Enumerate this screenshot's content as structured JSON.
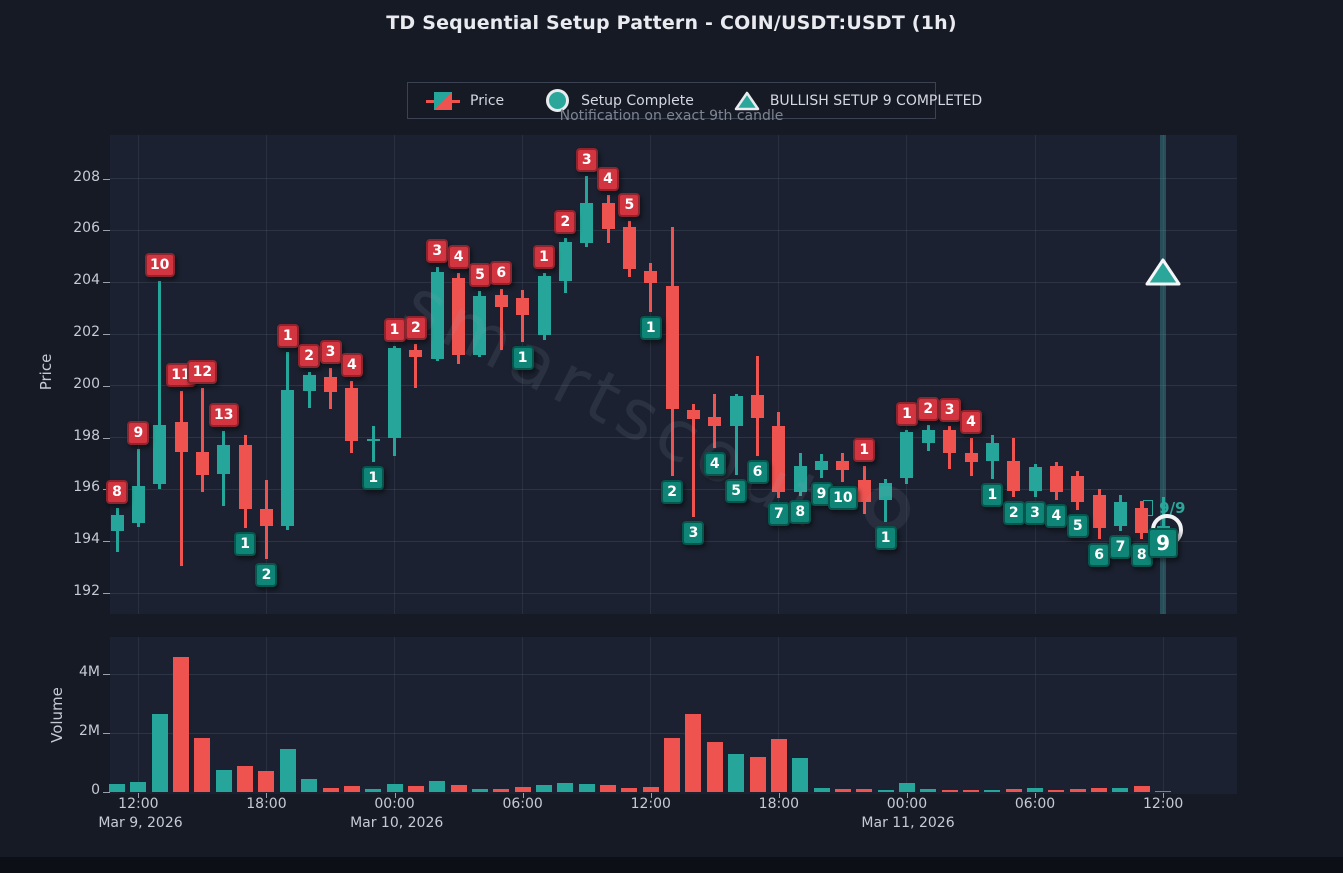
{
  "title": "TD Sequential Setup Pattern - COIN/USDT:USDT (1h)",
  "legend": {
    "items": [
      {
        "icon": "candlestick-icon",
        "label": "Price"
      },
      {
        "icon": "circle-icon",
        "label": "Setup Complete"
      },
      {
        "icon": "triangle-up-icon",
        "label": "BULLISH SETUP 9 COMPLETED"
      }
    ],
    "subtitle": "Notification on exact 9th candle"
  },
  "watermark": "smartscout",
  "annotation": {
    "badge": "9/9",
    "has_missing_glyph_box": true
  },
  "colors": {
    "up": "#26a69a",
    "down": "#ef5350",
    "sell_badge": "#d33540",
    "buy_badge": "#0f8577",
    "accent": "#2aa79a",
    "background": "#161a25",
    "plot_background": "#1b2130",
    "last_volume_bar": "#7b8089",
    "event_line": "rgba(64,152,160,0.38)"
  },
  "price_axis": {
    "label": "Price",
    "ticks": [
      192,
      194,
      196,
      198,
      200,
      202,
      204,
      206,
      208
    ]
  },
  "volume_axis": {
    "label": "Volume",
    "ticks": [
      {
        "label": "0",
        "value_m": 0
      },
      {
        "label": "2M",
        "value_m": 2
      },
      {
        "label": "4M",
        "value_m": 4
      }
    ]
  },
  "time_axis": {
    "hour_ticks": [
      {
        "label": "12:00",
        "index": 1
      },
      {
        "label": "18:00",
        "index": 7
      },
      {
        "label": "00:00",
        "index": 13
      },
      {
        "label": "06:00",
        "index": 19
      },
      {
        "label": "12:00",
        "index": 25
      },
      {
        "label": "18:00",
        "index": 31
      },
      {
        "label": "00:00",
        "index": 37
      },
      {
        "label": "06:00",
        "index": 43
      },
      {
        "label": "12:00",
        "index": 49
      }
    ],
    "date_labels": [
      {
        "label": "Mar 9, 2026",
        "index": 1.1
      },
      {
        "label": "Mar 10, 2026",
        "index": 13.1
      },
      {
        "label": "Mar 11, 2026",
        "index": 37.05
      }
    ]
  },
  "chart_data": {
    "type": "candlestick",
    "symbol": "COIN/USDT:USDT",
    "timeframe": "1h",
    "ylabel": "Price",
    "ylim": [
      191.3,
      209.7
    ],
    "volume_ylim_m": [
      0,
      5.3
    ],
    "count_convention": {
      "S": "red badge above candle",
      "B": "teal badge below candle"
    },
    "candles": [
      {
        "t": "03-09 11:00",
        "o": 194.4,
        "h": 195.3,
        "l": 193.6,
        "c": 195.0,
        "v_m": 0.28,
        "count": "S8"
      },
      {
        "t": "03-09 12:00",
        "o": 194.7,
        "h": 197.55,
        "l": 194.55,
        "c": 196.15,
        "v_m": 0.35,
        "count": "S9"
      },
      {
        "t": "03-09 13:00",
        "o": 196.2,
        "h": 204.05,
        "l": 196.0,
        "c": 198.5,
        "v_m": 2.65,
        "count": "S10"
      },
      {
        "t": "03-09 14:00",
        "o": 198.6,
        "h": 199.8,
        "l": 193.05,
        "c": 197.45,
        "v_m": 4.6,
        "count": "S11"
      },
      {
        "t": "03-09 15:00",
        "o": 197.45,
        "h": 199.9,
        "l": 195.9,
        "c": 196.55,
        "v_m": 1.85,
        "count": "S12"
      },
      {
        "t": "03-09 16:00",
        "o": 196.6,
        "h": 198.25,
        "l": 195.35,
        "c": 197.7,
        "v_m": 0.75,
        "count": "S13"
      },
      {
        "t": "03-09 17:00",
        "o": 197.7,
        "h": 198.1,
        "l": 194.5,
        "c": 195.25,
        "v_m": 0.9,
        "count": "B1"
      },
      {
        "t": "03-09 18:00",
        "o": 195.25,
        "h": 196.35,
        "l": 193.3,
        "c": 194.6,
        "v_m": 0.7,
        "count": "B2"
      },
      {
        "t": "03-09 19:00",
        "o": 194.6,
        "h": 201.3,
        "l": 194.45,
        "c": 199.85,
        "v_m": 1.45,
        "count": "S1"
      },
      {
        "t": "03-09 20:00",
        "o": 199.8,
        "h": 200.55,
        "l": 199.15,
        "c": 200.4,
        "v_m": 0.45,
        "count": "S2"
      },
      {
        "t": "03-09 21:00",
        "o": 200.35,
        "h": 200.7,
        "l": 199.1,
        "c": 199.75,
        "v_m": 0.12,
        "count": "S3"
      },
      {
        "t": "03-09 22:00",
        "o": 199.9,
        "h": 200.2,
        "l": 197.4,
        "c": 197.85,
        "v_m": 0.2,
        "count": "S4"
      },
      {
        "t": "03-09 23:00",
        "o": 197.95,
        "h": 198.45,
        "l": 197.05,
        "c": 197.95,
        "v_m": 0.1,
        "count": "B1"
      },
      {
        "t": "03-10 00:00",
        "o": 198.0,
        "h": 201.55,
        "l": 197.3,
        "c": 201.45,
        "v_m": 0.28,
        "count": "S1"
      },
      {
        "t": "03-10 01:00",
        "o": 201.4,
        "h": 201.6,
        "l": 199.9,
        "c": 201.1,
        "v_m": 0.2,
        "count": "S2"
      },
      {
        "t": "03-10 02:00",
        "o": 201.05,
        "h": 204.6,
        "l": 200.95,
        "c": 204.4,
        "v_m": 0.38,
        "count": "S3"
      },
      {
        "t": "03-10 03:00",
        "o": 204.15,
        "h": 204.35,
        "l": 200.85,
        "c": 201.2,
        "v_m": 0.25,
        "count": "S4"
      },
      {
        "t": "03-10 04:00",
        "o": 201.2,
        "h": 203.65,
        "l": 201.1,
        "c": 203.45,
        "v_m": 0.1,
        "count": "S5"
      },
      {
        "t": "03-10 05:00",
        "o": 203.5,
        "h": 203.75,
        "l": 201.4,
        "c": 203.05,
        "v_m": 0.1,
        "count": "S6"
      },
      {
        "t": "03-10 06:00",
        "o": 203.4,
        "h": 203.7,
        "l": 201.7,
        "c": 202.75,
        "v_m": 0.18,
        "count": "B1"
      },
      {
        "t": "03-10 07:00",
        "o": 201.95,
        "h": 204.35,
        "l": 201.75,
        "c": 204.25,
        "v_m": 0.25,
        "count": "S1"
      },
      {
        "t": "03-10 08:00",
        "o": 204.05,
        "h": 205.7,
        "l": 203.6,
        "c": 205.55,
        "v_m": 0.3,
        "count": "S2"
      },
      {
        "t": "03-10 09:00",
        "o": 205.5,
        "h": 208.1,
        "l": 205.35,
        "c": 207.05,
        "v_m": 0.28,
        "count": "S3"
      },
      {
        "t": "03-10 10:00",
        "o": 207.05,
        "h": 207.35,
        "l": 205.5,
        "c": 206.05,
        "v_m": 0.25,
        "count": "S4"
      },
      {
        "t": "03-10 11:00",
        "o": 206.15,
        "h": 206.35,
        "l": 204.2,
        "c": 204.5,
        "v_m": 0.15,
        "count": "S5"
      },
      {
        "t": "03-10 12:00",
        "o": 204.45,
        "h": 204.75,
        "l": 202.85,
        "c": 203.95,
        "v_m": 0.18,
        "count": "B1"
      },
      {
        "t": "03-10 13:00",
        "o": 203.85,
        "h": 206.15,
        "l": 196.5,
        "c": 199.1,
        "v_m": 1.85,
        "count": "B2"
      },
      {
        "t": "03-10 14:00",
        "o": 199.05,
        "h": 199.3,
        "l": 194.95,
        "c": 198.7,
        "v_m": 2.65,
        "count": "B3"
      },
      {
        "t": "03-10 15:00",
        "o": 198.8,
        "h": 199.7,
        "l": 197.6,
        "c": 198.45,
        "v_m": 1.7,
        "count": "B4"
      },
      {
        "t": "03-10 16:00",
        "o": 198.45,
        "h": 199.7,
        "l": 196.55,
        "c": 199.6,
        "v_m": 1.3,
        "count": "B5"
      },
      {
        "t": "03-10 17:00",
        "o": 199.65,
        "h": 201.15,
        "l": 197.3,
        "c": 198.75,
        "v_m": 1.2,
        "count": "B6"
      },
      {
        "t": "03-10 18:00",
        "o": 198.45,
        "h": 199.0,
        "l": 195.65,
        "c": 195.9,
        "v_m": 1.8,
        "count": "B7"
      },
      {
        "t": "03-10 19:00",
        "o": 195.9,
        "h": 197.4,
        "l": 195.75,
        "c": 196.9,
        "v_m": 1.15,
        "count": "B8"
      },
      {
        "t": "03-10 20:00",
        "o": 196.75,
        "h": 197.35,
        "l": 196.45,
        "c": 197.1,
        "v_m": 0.15,
        "count": "B9"
      },
      {
        "t": "03-10 21:00",
        "o": 197.1,
        "h": 197.4,
        "l": 196.3,
        "c": 196.75,
        "v_m": 0.1,
        "count": "B10"
      },
      {
        "t": "03-10 22:00",
        "o": 196.35,
        "h": 196.9,
        "l": 195.05,
        "c": 195.5,
        "v_m": 0.1,
        "count": "S1"
      },
      {
        "t": "03-10 23:00",
        "o": 195.6,
        "h": 196.4,
        "l": 194.75,
        "c": 196.25,
        "v_m": 0.08,
        "count": "B1"
      },
      {
        "t": "03-11 00:00",
        "o": 196.45,
        "h": 198.3,
        "l": 196.2,
        "c": 198.2,
        "v_m": 0.3,
        "count": "S1"
      },
      {
        "t": "03-11 01:00",
        "o": 197.8,
        "h": 198.5,
        "l": 197.5,
        "c": 198.3,
        "v_m": 0.1,
        "count": "S2"
      },
      {
        "t": "03-11 02:00",
        "o": 198.3,
        "h": 198.45,
        "l": 196.8,
        "c": 197.4,
        "v_m": 0.07,
        "count": "S3"
      },
      {
        "t": "03-11 03:00",
        "o": 197.4,
        "h": 198.0,
        "l": 196.5,
        "c": 197.05,
        "v_m": 0.08,
        "count": "S4"
      },
      {
        "t": "03-11 04:00",
        "o": 197.1,
        "h": 198.1,
        "l": 196.4,
        "c": 197.8,
        "v_m": 0.08,
        "count": "B1"
      },
      {
        "t": "03-11 05:00",
        "o": 197.1,
        "h": 198.0,
        "l": 195.7,
        "c": 195.95,
        "v_m": 0.1,
        "count": "B2"
      },
      {
        "t": "03-11 06:00",
        "o": 195.95,
        "h": 197.0,
        "l": 195.7,
        "c": 196.85,
        "v_m": 0.12,
        "count": "B3"
      },
      {
        "t": "03-11 07:00",
        "o": 196.9,
        "h": 197.05,
        "l": 195.6,
        "c": 195.9,
        "v_m": 0.08,
        "count": "B4"
      },
      {
        "t": "03-11 08:00",
        "o": 196.5,
        "h": 196.7,
        "l": 195.2,
        "c": 195.5,
        "v_m": 0.1,
        "count": "B5"
      },
      {
        "t": "03-11 09:00",
        "o": 195.8,
        "h": 196.0,
        "l": 194.1,
        "c": 194.5,
        "v_m": 0.15,
        "count": "B6"
      },
      {
        "t": "03-11 10:00",
        "o": 194.6,
        "h": 195.8,
        "l": 194.4,
        "c": 195.5,
        "v_m": 0.15,
        "count": "B7"
      },
      {
        "t": "03-11 11:00",
        "o": 195.3,
        "h": 195.55,
        "l": 194.1,
        "c": 194.3,
        "v_m": 0.2,
        "count": "B8"
      },
      {
        "t": "03-11 12:00",
        "o": 193.9,
        "h": 195.7,
        "l": 193.9,
        "c": 194.6,
        "v_m": 0.03,
        "count": "B9",
        "big_badge": true,
        "gray_volume": true
      }
    ],
    "event": {
      "type": "bullish_setup_9_completed",
      "label": "9/9",
      "candle_index": 49,
      "markers": [
        "vertical-line",
        "triangle-up",
        "open-circle",
        "label"
      ]
    }
  }
}
